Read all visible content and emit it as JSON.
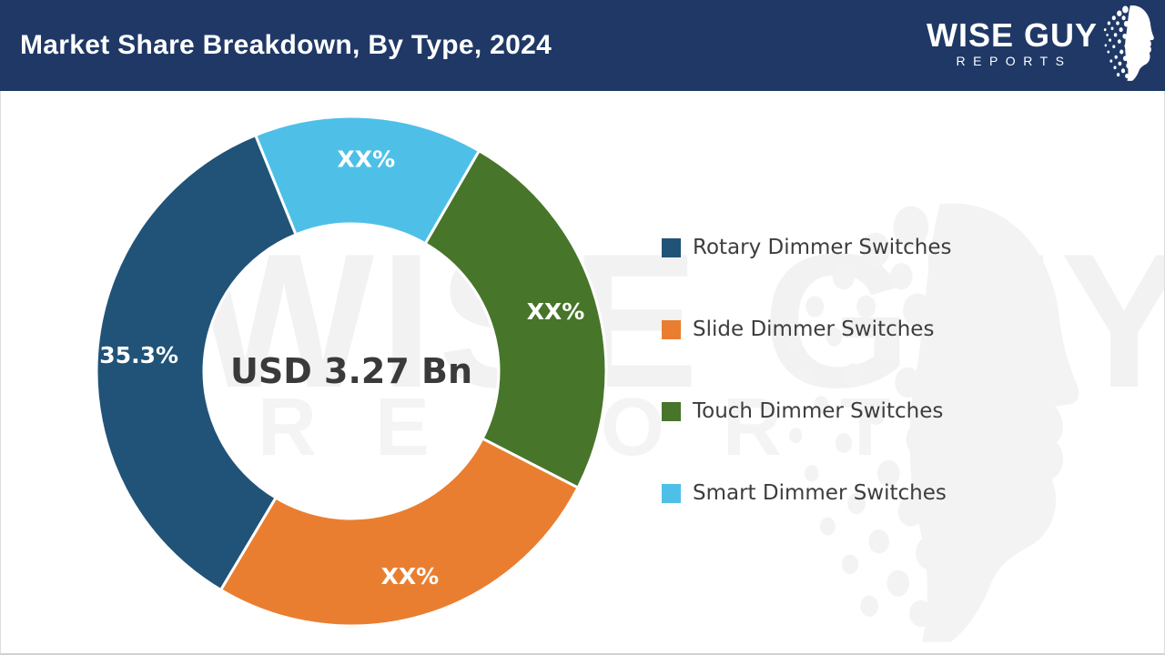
{
  "header": {
    "title": "Market Share Breakdown, By Type, 2024",
    "bg_color": "#1F3866",
    "logo": {
      "name": "WISE GUY",
      "tagline": "REPORTS"
    }
  },
  "watermark": {
    "line1": "WISE GUY",
    "line2": "REPORTS"
  },
  "chart_data": {
    "type": "donut",
    "center_label": "USD 3.27 Bn",
    "start_angle_deg": -22.1,
    "legend_position": "right",
    "grid": false,
    "series": [
      {
        "name": "Rotary Dimmer Switches",
        "value": 35.3,
        "display_label": "35.3%",
        "color": "#215378"
      },
      {
        "name": "Slide Dimmer Switches",
        "value": 26.0,
        "display_label": "XX%",
        "color": "#EA7E30"
      },
      {
        "name": "Touch Dimmer Switches",
        "value": 24.2,
        "display_label": "XX%",
        "color": "#477529"
      },
      {
        "name": "Smart Dimmer Switches",
        "value": 14.5,
        "display_label": "XX%",
        "color": "#4EC0E8"
      }
    ]
  }
}
